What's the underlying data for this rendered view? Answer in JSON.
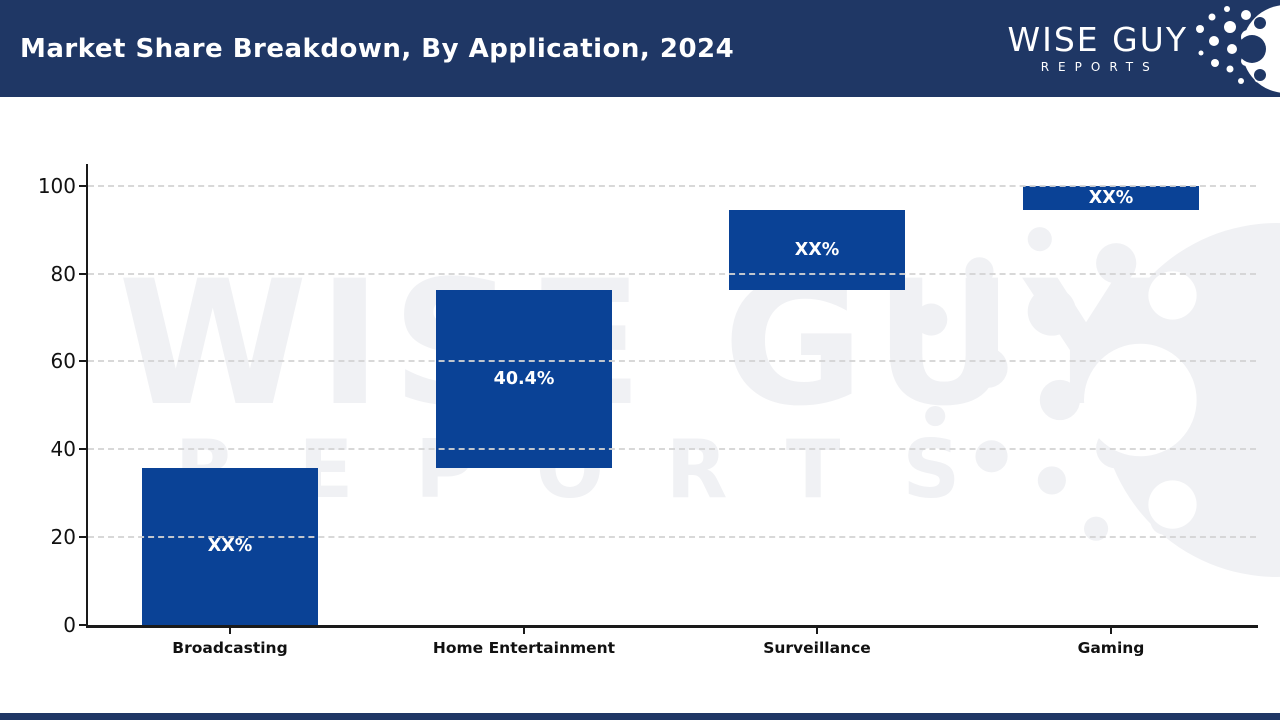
{
  "header": {
    "title": "Market Share Breakdown, By Application, 2024",
    "logo": {
      "name": "WISE GUY",
      "tagline": "REPORTS"
    }
  },
  "watermark": {
    "line1": "WISE GUY",
    "line2": "REPORTS"
  },
  "chart_data": {
    "type": "bar",
    "subtype": "waterfall",
    "title": "Market Share Breakdown, By Application, 2024",
    "categories": [
      "Broadcasting",
      "Home Entertainment",
      "Surveillance",
      "Gaming"
    ],
    "segments": [
      {
        "category": "Broadcasting",
        "start": 0,
        "end": 35.8,
        "label": "XX%"
      },
      {
        "category": "Home Entertainment",
        "start": 35.8,
        "end": 76.2,
        "label": "40.4%"
      },
      {
        "category": "Surveillance",
        "start": 76.2,
        "end": 94.4,
        "label": "XX%"
      },
      {
        "category": "Gaming",
        "start": 94.4,
        "end": 100,
        "label": "XX%"
      }
    ],
    "unit": "%",
    "yticks": [
      0,
      20,
      40,
      60,
      80,
      100
    ],
    "ylim": [
      0,
      104.7
    ],
    "grid": "horizontal-dashed",
    "grid_above_bars": true,
    "legend": "none",
    "xlabel": "",
    "ylabel": ""
  },
  "colors": {
    "header_bg": "#1f3765",
    "footer_bg": "#1f3765",
    "bar": "#0a4296",
    "bar_label": "#ffffff",
    "grid": "#d4d4d4",
    "axis": "#1a1a1a",
    "tick_text": "#111111",
    "watermark": "#f0f1f4"
  }
}
